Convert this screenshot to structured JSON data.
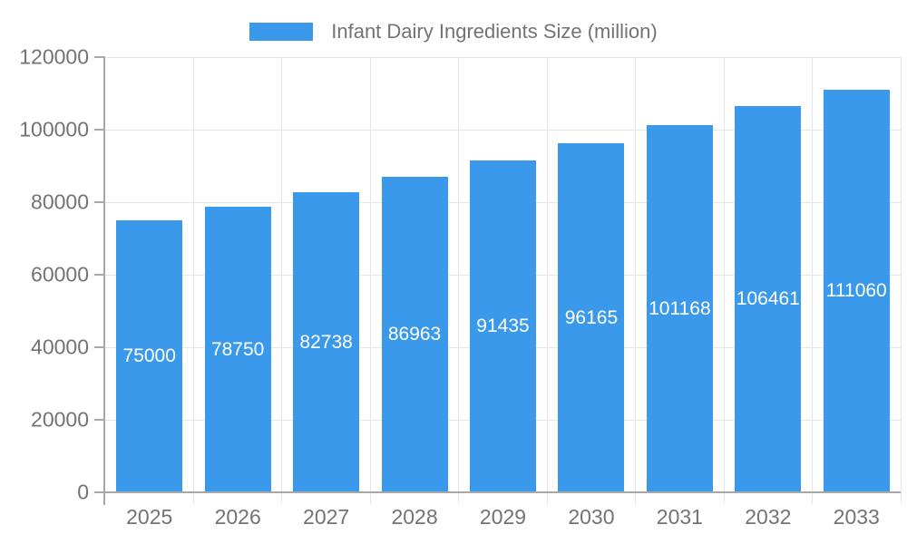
{
  "legend": {
    "label": "Infant Dairy Ingredients Size (million)"
  },
  "colors": {
    "bar": "#3B99EC",
    "grid": "#E6E6E6",
    "axis": "#A8A8A8",
    "tick_label": "#737373",
    "value_label": "#FFFFFF",
    "background": "#FFFFFF"
  },
  "chart_data": {
    "type": "bar",
    "title": "Infant Dairy Ingredients Size (million)",
    "categories": [
      "2025",
      "2026",
      "2027",
      "2028",
      "2029",
      "2030",
      "2031",
      "2032",
      "2033"
    ],
    "values": [
      75000,
      78750,
      82738,
      86963,
      91435,
      96165,
      101168,
      106461,
      111060
    ],
    "value_labels": [
      "75000",
      "78750",
      "82738",
      "86963",
      "91435",
      "96165",
      "101168",
      "106461",
      "111060"
    ],
    "xlabel": "",
    "ylabel": "",
    "ylim": [
      0,
      120000
    ],
    "yticks": [
      0,
      20000,
      40000,
      60000,
      80000,
      100000,
      120000
    ],
    "ytick_labels": [
      "0",
      "20000",
      "40000",
      "60000",
      "80000",
      "100000",
      "120000"
    ],
    "grid": true,
    "legend_position": "top",
    "value_labels_inside_bars": true
  }
}
